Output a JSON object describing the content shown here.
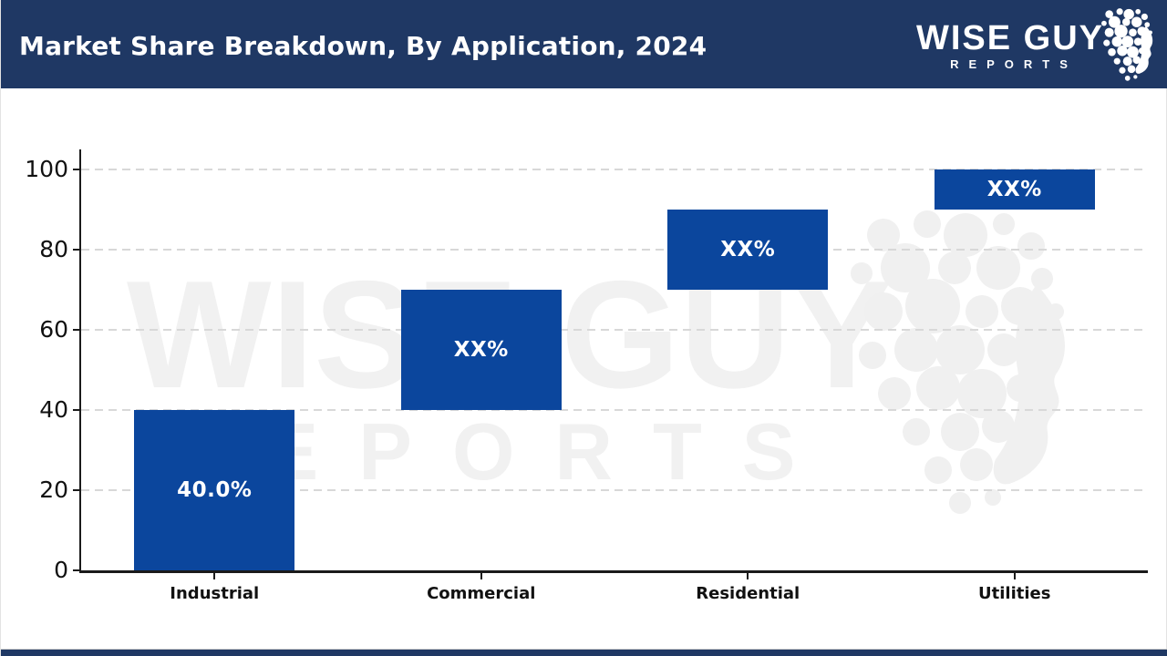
{
  "header": {
    "title": "Market Share Breakdown, By Application, 2024",
    "logo": {
      "line1": "WISE GUY",
      "line2": "REPORTS"
    }
  },
  "watermark": {
    "line1": "WISE GUY",
    "line2": "REPORTS"
  },
  "colors": {
    "header_bg": "#1f3864",
    "footer_bg": "#1f3864",
    "bar": "#0b469d",
    "bar_label": "#ffffff",
    "grid": "#d8d8d8",
    "axis": "#1a1a1a",
    "tick": "#111111",
    "wm": "#f1f1f1"
  },
  "chart_data": {
    "type": "bar",
    "subtype": "waterfall-breakdown",
    "title": "Market Share Breakdown, By Application, 2024",
    "categories": [
      "Industrial",
      "Commercial",
      "Residential",
      "Utilities"
    ],
    "segments": [
      {
        "category": "Industrial",
        "start": 0,
        "end": 40,
        "label": "40.0%"
      },
      {
        "category": "Commercial",
        "start": 40,
        "end": 70,
        "label": "XX%"
      },
      {
        "category": "Residential",
        "start": 70,
        "end": 90,
        "label": "XX%"
      },
      {
        "category": "Utilities",
        "start": 90,
        "end": 100,
        "label": "XX%"
      }
    ],
    "xlabel": "",
    "ylabel": "",
    "ylim": [
      0,
      105
    ],
    "yticks": [
      0,
      20,
      40,
      60,
      80,
      100
    ],
    "grid": "horizontal-dashed",
    "legend": "none",
    "bar_color": "#0b469d",
    "value_label_position": "inside-center"
  }
}
